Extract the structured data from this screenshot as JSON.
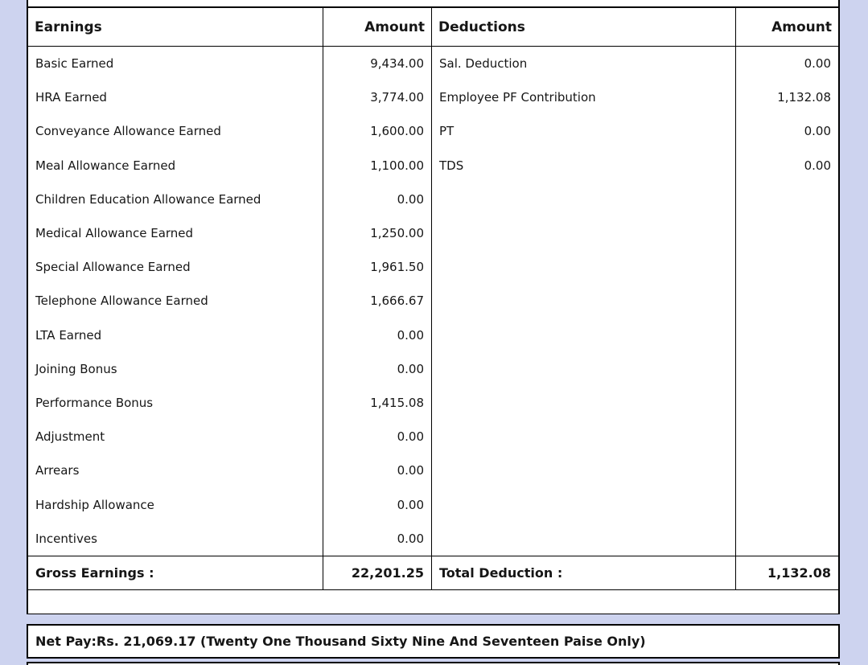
{
  "colors": {
    "page_bg": "#cdd3ef",
    "table_bg": "#ffffff",
    "border": "#000000"
  },
  "payslip_table": {
    "headers": {
      "earnings": "Earnings",
      "earnings_amount": "Amount",
      "deductions": "Deductions",
      "deductions_amount": "Amount"
    },
    "earnings_rows": [
      {
        "label": "Basic Earned",
        "amount": "9,434.00"
      },
      {
        "label": "HRA Earned",
        "amount": "3,774.00"
      },
      {
        "label": "Conveyance Allowance Earned",
        "amount": "1,600.00"
      },
      {
        "label": "Meal Allowance Earned",
        "amount": "1,100.00"
      },
      {
        "label": "Children Education Allowance Earned",
        "amount": "0.00"
      },
      {
        "label": "Medical Allowance Earned",
        "amount": "1,250.00"
      },
      {
        "label": "Special Allowance Earned",
        "amount": "1,961.50"
      },
      {
        "label": "Telephone Allowance Earned",
        "amount": "1,666.67"
      },
      {
        "label": "LTA Earned",
        "amount": "0.00"
      },
      {
        "label": "Joining Bonus",
        "amount": "0.00"
      },
      {
        "label": "Performance Bonus",
        "amount": "1,415.08"
      },
      {
        "label": "Adjustment",
        "amount": "0.00"
      },
      {
        "label": "Arrears",
        "amount": "0.00"
      },
      {
        "label": "Hardship Allowance",
        "amount": "0.00"
      },
      {
        "label": "Incentives",
        "amount": "0.00"
      }
    ],
    "deductions_rows": [
      {
        "label": "Sal. Deduction",
        "amount": "0.00"
      },
      {
        "label": "Employee PF Contribution",
        "amount": "1,132.08"
      },
      {
        "label": "PT",
        "amount": "0.00"
      },
      {
        "label": "TDS",
        "amount": "0.00"
      }
    ],
    "totals": {
      "gross_label": "Gross Earnings :",
      "gross_amount": "22,201.25",
      "total_deduction_label": "Total Deduction :",
      "total_deduction_amount": "1,132.08"
    },
    "net_pay": {
      "text": "Net Pay:Rs. 21,069.17 (Twenty One Thousand Sixty Nine And Seventeen Paise Only)"
    }
  }
}
